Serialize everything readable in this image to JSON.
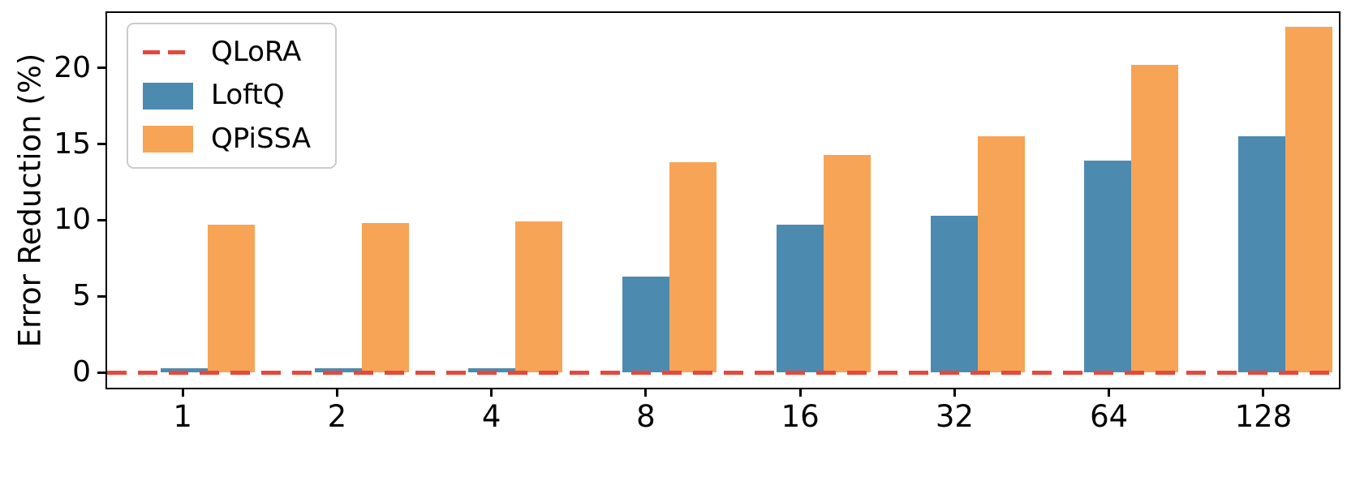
{
  "chart_data": {
    "type": "bar",
    "title": "",
    "xlabel": "",
    "ylabel": "Error Reduction (%)",
    "categories": [
      "1",
      "2",
      "4",
      "8",
      "16",
      "32",
      "64",
      "128"
    ],
    "series": [
      {
        "name": "LoftQ",
        "color": "#4d8ab0",
        "values": [
          0.3,
          0.3,
          0.3,
          6.3,
          9.7,
          10.3,
          13.9,
          15.5
        ]
      },
      {
        "name": "QPiSSA",
        "color": "#f7a456",
        "values": [
          9.7,
          9.8,
          9.9,
          13.8,
          14.3,
          15.5,
          20.2,
          22.7
        ]
      }
    ],
    "baseline": {
      "name": "QLoRA",
      "value": 0,
      "color": "#e5483d",
      "style": "dashed"
    },
    "ylim": [
      -1,
      23.6
    ],
    "yticks": [
      0,
      5,
      10,
      15,
      20
    ],
    "grid": false,
    "legend_position": "upper left"
  }
}
